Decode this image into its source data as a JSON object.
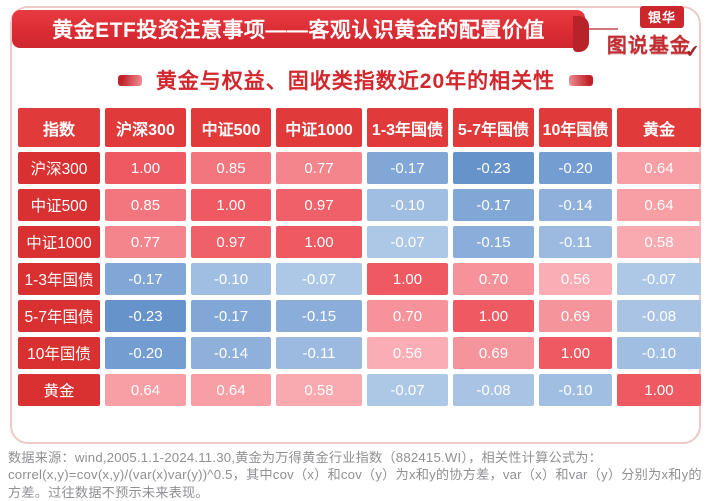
{
  "banner": {
    "title": "黄金ETF投资注意事项——客观认识黄金的配置价值"
  },
  "logo": {
    "badge": "银华",
    "name": "图说基金",
    "check": "✔"
  },
  "subtitle": "黄金与权益、固收类指数近20年的相关性",
  "footnote": "数据来源：wind,2005.1.1-2024.11.30,黄金为万得黄金行业指数（882415.WI），相关性计算公式为：correl(x,y)=cov(x,y)/(var(x)var(y))^0.5，其中cov（x）和cov（y）为x和y的协方差，var（x）和var（y）分别为x和y的方差。过往数据不预示未来表现。",
  "colors": {
    "banner_red": "#da2b33",
    "header_red": "#e13a3a",
    "rowlabel_red": "#d93131",
    "positive_low": "#fbb8bf",
    "positive_high": "#ef5a62",
    "negative_low": "#b6cdea",
    "negative_high": "#5e8dc8"
  },
  "chart_data": {
    "type": "heatmap",
    "title": "黄金与权益、固收类指数近20年的相关性",
    "corner_label": "指数",
    "columns": [
      "沪深300",
      "中证500",
      "中证1000",
      "1-3年国债",
      "5-7年国债",
      "10年国债",
      "黄金"
    ],
    "rows": [
      "沪深300",
      "中证500",
      "中证1000",
      "1-3年国债",
      "5-7年国债",
      "10年国债",
      "黄金"
    ],
    "values": [
      [
        1.0,
        0.85,
        0.77,
        -0.17,
        -0.23,
        -0.2,
        0.64
      ],
      [
        0.85,
        1.0,
        0.97,
        -0.1,
        -0.17,
        -0.14,
        0.64
      ],
      [
        0.77,
        0.97,
        1.0,
        -0.07,
        -0.15,
        -0.11,
        0.58
      ],
      [
        -0.17,
        -0.1,
        -0.07,
        1.0,
        0.7,
        0.56,
        -0.07
      ],
      [
        -0.23,
        -0.17,
        -0.15,
        0.7,
        1.0,
        0.69,
        -0.08
      ],
      [
        -0.2,
        -0.14,
        -0.11,
        0.56,
        0.69,
        1.0,
        -0.1
      ],
      [
        0.64,
        0.64,
        0.58,
        -0.07,
        -0.08,
        -0.1,
        1.0
      ]
    ],
    "value_format": "0.00",
    "legend": "none",
    "grid": "white-gaps",
    "colormap": {
      "positive": [
        "#fbb8bf",
        "#ef5a62"
      ],
      "negative": [
        "#b6cdea",
        "#5e8dc8"
      ]
    }
  }
}
